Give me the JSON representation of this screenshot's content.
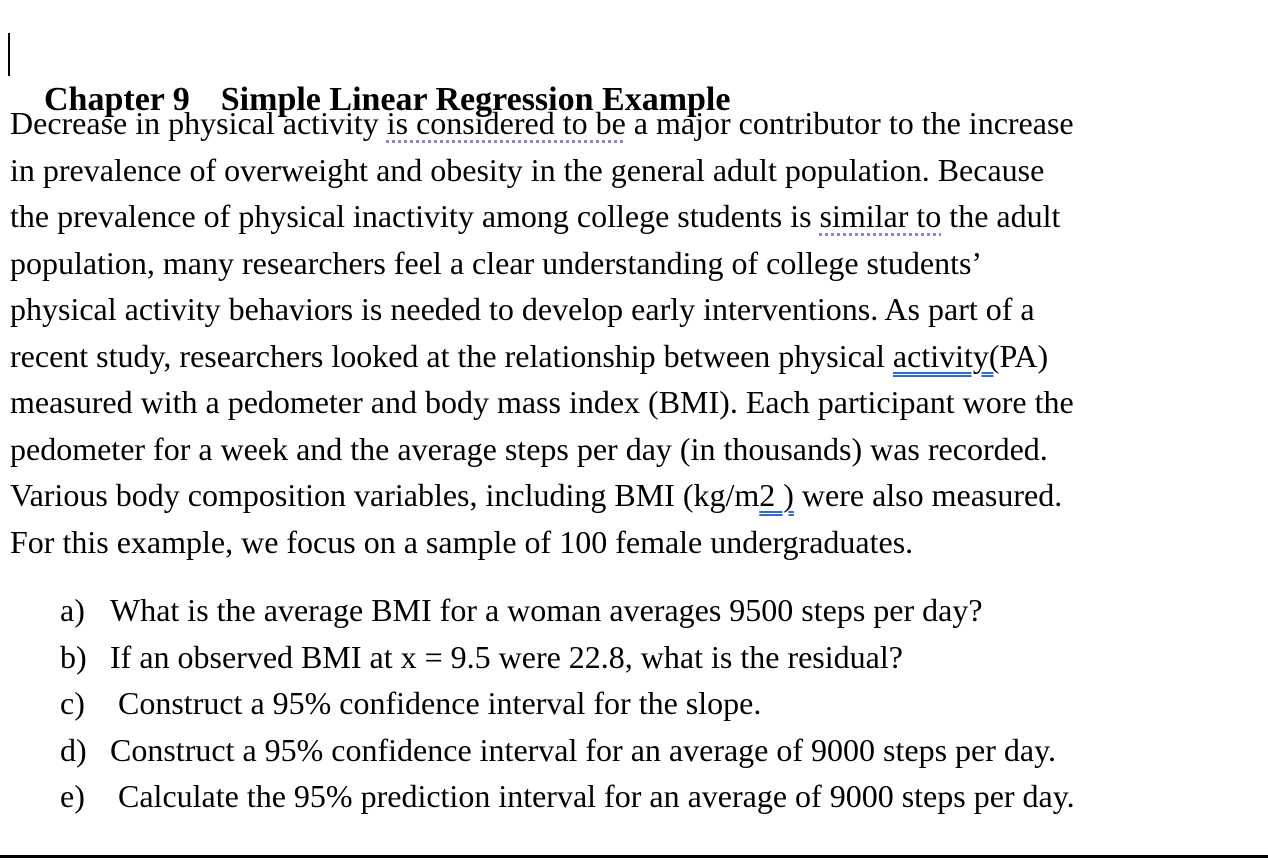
{
  "document": {
    "title": {
      "chapter": "Chapter 9",
      "subtitle": "Simple Linear Regression Example"
    },
    "paragraph_lines": [
      [
        {
          "text": "Decrease in physical activity ",
          "mark": "none"
        },
        {
          "text": "is considered to be",
          "mark": "dotted"
        },
        {
          "text": " a major contributor to the increase",
          "mark": "none"
        }
      ],
      [
        {
          "text": "in prevalence of overweight and obesity in the general adult population. Because",
          "mark": "none"
        }
      ],
      [
        {
          "text": "the prevalence of physical inactivity among college students is ",
          "mark": "none"
        },
        {
          "text": "similar to",
          "mark": "dotted"
        },
        {
          "text": " the adult",
          "mark": "none"
        }
      ],
      [
        {
          "text": "population, many researchers feel a clear understanding of college students’",
          "mark": "none"
        }
      ],
      [
        {
          "text": "physical activity behaviors is needed to develop early interventions. As part of a",
          "mark": "none"
        }
      ],
      [
        {
          "text": "recent study, researchers looked at the relationship between physical ",
          "mark": "none"
        },
        {
          "text": "activity(",
          "mark": "double"
        },
        {
          "text": "PA)",
          "mark": "none"
        }
      ],
      [
        {
          "text": "measured with a pedometer and body mass index (BMI). Each participant wore the",
          "mark": "none"
        }
      ],
      [
        {
          "text": "pedometer for a week and the average steps per day (in thousands) was recorded.",
          "mark": "none"
        }
      ],
      [
        {
          "text": "Various body composition variables, including BMI (kg/m",
          "mark": "none"
        },
        {
          "text": "2 )",
          "mark": "double"
        },
        {
          "text": " were also measured.",
          "mark": "none"
        }
      ],
      [
        {
          "text": "For this example, we focus on a sample of 100 female undergraduates.",
          "mark": "none"
        }
      ]
    ],
    "questions": [
      {
        "label": "a)",
        "text": "What is the average BMI for a woman averages 9500 steps per day?"
      },
      {
        "label": "b)",
        "text": "If an observed BMI at x = 9.5 were 22.8, what is the residual?"
      },
      {
        "label": "c)",
        "text": " Construct a 95% confidence interval for the slope."
      },
      {
        "label": "d)",
        "text": "Construct a 95% confidence interval for an average of 9000 steps per day."
      },
      {
        "label": "e)",
        "text": " Calculate the 95% prediction interval for an average of 9000 steps per day."
      }
    ],
    "colors": {
      "text": "#000000",
      "page_background": "#ffffff",
      "spelling_underline": "#8a84e2",
      "grammar_underline": "#2e6bd4",
      "divider": "#000000"
    }
  }
}
